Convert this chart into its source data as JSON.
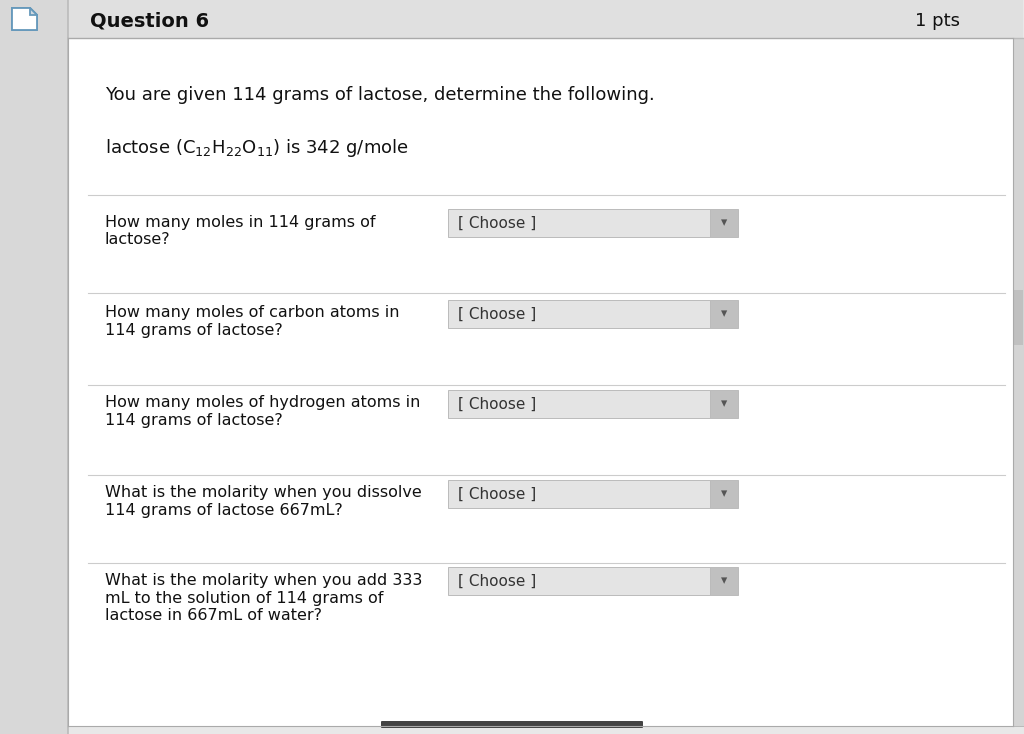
{
  "title": "Question 6",
  "pts": "1 pts",
  "bg_color": "#e8e8e8",
  "content_bg": "#ffffff",
  "intro_line1": "You are given 114 grams of lactose, determine the following.",
  "intro_formula": "lactose ($\\mathregular{C_{12}H_{22}O_{11}}$) is 342 g/mole",
  "questions": [
    [
      "How many moles in 114 grams of",
      "lactose?"
    ],
    [
      "How many moles of carbon atoms in",
      "114 grams of lactose?"
    ],
    [
      "How many moles of hydrogen atoms in",
      "114 grams of lactose?"
    ],
    [
      "What is the molarity when you dissolve",
      "114 grams of lactose 667mL?"
    ],
    [
      "What is the molarity when you add 333",
      "mL to the solution of 114 grams of",
      "lactose in 667mL of water?"
    ]
  ],
  "dropdown_label": "[ Choose ]",
  "header_bg": "#e0e0e0",
  "dropdown_bg_light": "#e8e8e8",
  "dropdown_bg_dark": "#c8c8c8",
  "separator_color": "#cccccc",
  "title_font_size": 14,
  "pts_font_size": 13,
  "intro_font_size": 13,
  "question_font_size": 11.5,
  "dropdown_font_size": 11,
  "scroll_bar_color": "#c0c0c0",
  "bottom_bar_color": "#444444",
  "left_panel_bg": "#d8d8d8",
  "right_panel_bg": "#e0e0e0"
}
